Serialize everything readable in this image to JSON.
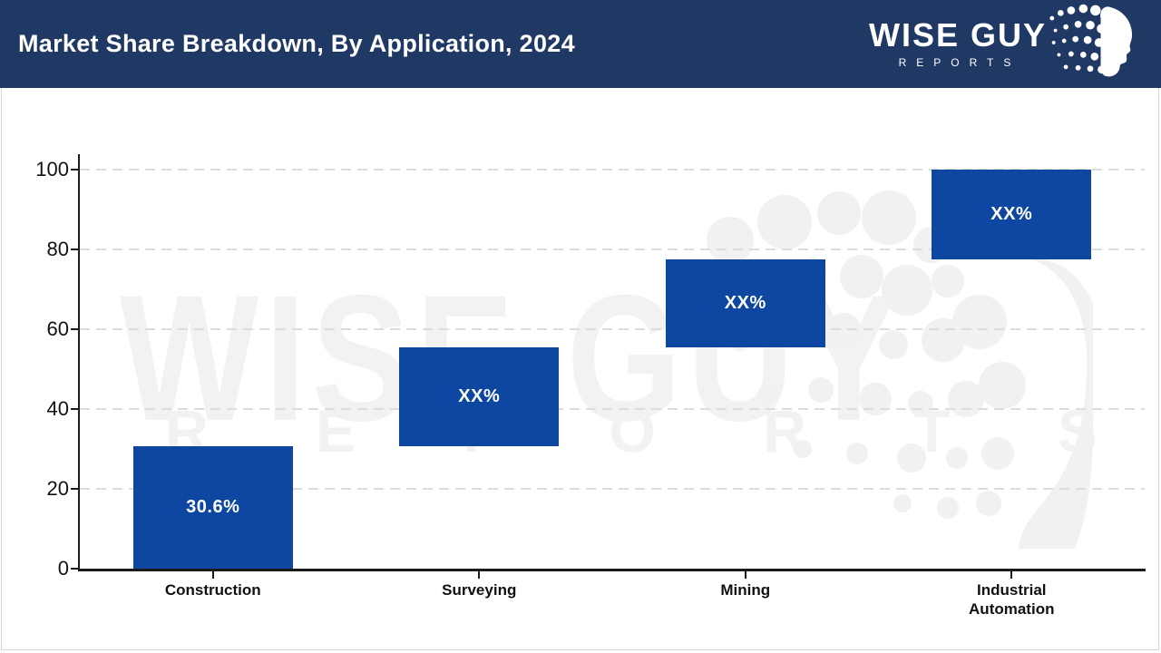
{
  "header": {
    "title": "Market Share Breakdown, By Application, 2024",
    "logo": {
      "primary": "WISE GUY",
      "secondary": "REPORTS"
    }
  },
  "watermark": {
    "primary": "WISE GUY",
    "secondary": "R E P O R T S"
  },
  "chart_data": {
    "type": "bar",
    "subtype": "waterfall",
    "title": "Market Share Breakdown, By Application, 2024",
    "categories": [
      "Construction",
      "Surveying",
      "Mining",
      "Industrial Automation"
    ],
    "segments": [
      {
        "category": "Construction",
        "label": "30.6%",
        "start": 0,
        "end": 30.6
      },
      {
        "category": "Surveying",
        "label": "XX%",
        "start": 30.6,
        "end": 55.5
      },
      {
        "category": "Mining",
        "label": "XX%",
        "start": 55.5,
        "end": 77.5
      },
      {
        "category": "Industrial Automation",
        "label": "XX%",
        "start": 77.5,
        "end": 100
      }
    ],
    "y_ticks": [
      0,
      20,
      40,
      60,
      80,
      100
    ],
    "ylim": [
      0,
      100
    ],
    "xlabel": "",
    "ylabel": "",
    "legend": "none",
    "grid": "horizontal-dashed",
    "colors": {
      "bar": "#0d47a1",
      "header_bg": "#203864",
      "axis": "#1a1a1a",
      "gridline": "#dcdcdc",
      "value_label": "#ffffff",
      "watermark": "#f2f2f2"
    }
  }
}
